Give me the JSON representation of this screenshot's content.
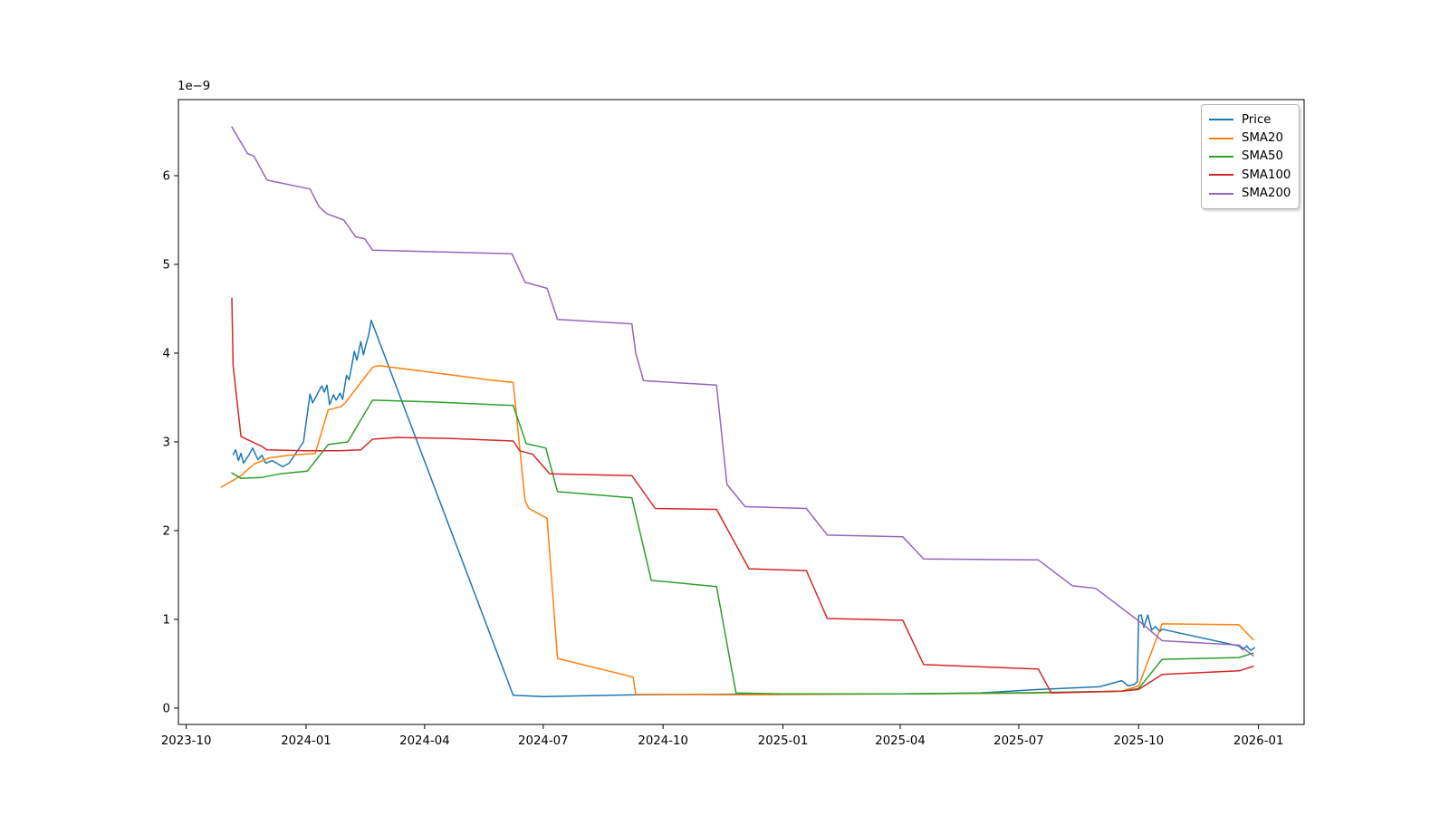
{
  "figure": {
    "background": "#ffffff",
    "y_axis_offset_label": "1e−9"
  },
  "chart_data": {
    "type": "line",
    "title": "",
    "xlabel": "",
    "ylabel": "",
    "grid": false,
    "y_unit_multiplier": "1e-9",
    "y_range": [
      -0.184,
      6.857
    ],
    "x_range": [
      "2023-09-25",
      "2026-02-05"
    ],
    "y_ticks": [
      0,
      1,
      2,
      3,
      4,
      5,
      6
    ],
    "x_ticks": [
      {
        "date": "2023-10-01",
        "label": "2023-10"
      },
      {
        "date": "2024-01-01",
        "label": "2024-01"
      },
      {
        "date": "2024-04-01",
        "label": "2024-04"
      },
      {
        "date": "2024-07-01",
        "label": "2024-07"
      },
      {
        "date": "2024-10-01",
        "label": "2024-10"
      },
      {
        "date": "2025-01-01",
        "label": "2025-01"
      },
      {
        "date": "2025-04-01",
        "label": "2025-04"
      },
      {
        "date": "2025-07-01",
        "label": "2025-07"
      },
      {
        "date": "2025-10-01",
        "label": "2025-10"
      },
      {
        "date": "2026-01-01",
        "label": "2026-01"
      }
    ],
    "legend": {
      "position": "upper right"
    },
    "series": [
      {
        "name": "Price",
        "color": "#1f77b4",
        "points": [
          [
            "2023-11-06",
            2.86
          ],
          [
            "2023-11-08",
            2.91
          ],
          [
            "2023-11-10",
            2.79
          ],
          [
            "2023-11-12",
            2.87
          ],
          [
            "2023-11-14",
            2.76
          ],
          [
            "2023-11-18",
            2.85
          ],
          [
            "2023-11-21",
            2.93
          ],
          [
            "2023-11-25",
            2.8
          ],
          [
            "2023-11-28",
            2.85
          ],
          [
            "2023-12-01",
            2.76
          ],
          [
            "2023-12-06",
            2.79
          ],
          [
            "2023-12-14",
            2.72
          ],
          [
            "2023-12-19",
            2.76
          ],
          [
            "2023-12-30",
            3.0
          ],
          [
            "2024-01-04",
            3.54
          ],
          [
            "2024-01-06",
            3.44
          ],
          [
            "2024-01-09",
            3.52
          ],
          [
            "2024-01-11",
            3.58
          ],
          [
            "2024-01-13",
            3.63
          ],
          [
            "2024-01-15",
            3.56
          ],
          [
            "2024-01-17",
            3.64
          ],
          [
            "2024-01-19",
            3.42
          ],
          [
            "2024-01-22",
            3.53
          ],
          [
            "2024-01-24",
            3.47
          ],
          [
            "2024-01-27",
            3.55
          ],
          [
            "2024-01-29",
            3.48
          ],
          [
            "2024-02-01",
            3.75
          ],
          [
            "2024-02-03",
            3.7
          ],
          [
            "2024-02-05",
            3.85
          ],
          [
            "2024-02-07",
            4.02
          ],
          [
            "2024-02-09",
            3.92
          ],
          [
            "2024-02-12",
            4.13
          ],
          [
            "2024-02-14",
            3.98
          ],
          [
            "2024-02-16",
            4.1
          ],
          [
            "2024-02-18",
            4.2
          ],
          [
            "2024-02-20",
            4.37
          ],
          [
            "2024-06-08",
            0.145
          ],
          [
            "2024-07-01",
            0.13
          ],
          [
            "2024-09-10",
            0.15
          ],
          [
            "2025-01-01",
            0.16
          ],
          [
            "2025-04-01",
            0.16
          ],
          [
            "2025-06-01",
            0.17
          ],
          [
            "2025-07-16",
            0.21
          ],
          [
            "2025-09-01",
            0.24
          ],
          [
            "2025-09-18",
            0.31
          ],
          [
            "2025-09-23",
            0.25
          ],
          [
            "2025-09-28",
            0.27
          ],
          [
            "2025-09-30",
            0.3
          ],
          [
            "2025-10-01",
            1.04
          ],
          [
            "2025-10-03",
            1.05
          ],
          [
            "2025-10-05",
            0.91
          ],
          [
            "2025-10-08",
            1.05
          ],
          [
            "2025-10-11",
            0.88
          ],
          [
            "2025-10-14",
            0.92
          ],
          [
            "2025-10-17",
            0.86
          ],
          [
            "2025-10-19",
            0.89
          ],
          [
            "2025-12-17",
            0.7
          ],
          [
            "2025-12-20",
            0.66
          ],
          [
            "2025-12-23",
            0.7
          ],
          [
            "2025-12-26",
            0.65
          ],
          [
            "2025-12-29",
            0.68
          ]
        ]
      },
      {
        "name": "SMA20",
        "color": "#ff7f0e",
        "points": [
          [
            "2023-10-28",
            2.49
          ],
          [
            "2023-11-12",
            2.62
          ],
          [
            "2023-11-22",
            2.75
          ],
          [
            "2023-12-04",
            2.82
          ],
          [
            "2023-12-19",
            2.85
          ],
          [
            "2024-01-08",
            2.87
          ],
          [
            "2024-01-18",
            3.36
          ],
          [
            "2024-01-28",
            3.4
          ],
          [
            "2024-01-31",
            3.44
          ],
          [
            "2024-02-21",
            3.84
          ],
          [
            "2024-02-26",
            3.86
          ],
          [
            "2024-04-08",
            3.78
          ],
          [
            "2024-05-20",
            3.7
          ],
          [
            "2024-06-08",
            3.67
          ],
          [
            "2024-06-17",
            2.34
          ],
          [
            "2024-06-20",
            2.25
          ],
          [
            "2024-07-04",
            2.14
          ],
          [
            "2024-07-12",
            0.56
          ],
          [
            "2024-09-08",
            0.35
          ],
          [
            "2024-09-10",
            0.155
          ],
          [
            "2024-12-01",
            0.15
          ],
          [
            "2025-04-01",
            0.16
          ],
          [
            "2025-07-16",
            0.17
          ],
          [
            "2025-09-18",
            0.19
          ],
          [
            "2025-10-01",
            0.25
          ],
          [
            "2025-10-19",
            0.95
          ],
          [
            "2025-12-17",
            0.94
          ],
          [
            "2025-12-28",
            0.77
          ]
        ]
      },
      {
        "name": "SMA50",
        "color": "#2ca02c",
        "points": [
          [
            "2023-11-05",
            2.65
          ],
          [
            "2023-11-12",
            2.59
          ],
          [
            "2023-11-28",
            2.6
          ],
          [
            "2023-12-12",
            2.64
          ],
          [
            "2024-01-02",
            2.67
          ],
          [
            "2024-01-18",
            2.97
          ],
          [
            "2024-02-02",
            3.0
          ],
          [
            "2024-02-21",
            3.47
          ],
          [
            "2024-04-08",
            3.45
          ],
          [
            "2024-06-08",
            3.41
          ],
          [
            "2024-06-18",
            2.98
          ],
          [
            "2024-07-03",
            2.93
          ],
          [
            "2024-07-12",
            2.44
          ],
          [
            "2024-09-07",
            2.37
          ],
          [
            "2024-09-22",
            1.44
          ],
          [
            "2024-11-11",
            1.37
          ],
          [
            "2024-11-26",
            0.17
          ],
          [
            "2025-01-01",
            0.16
          ],
          [
            "2025-04-01",
            0.16
          ],
          [
            "2025-07-16",
            0.175
          ],
          [
            "2025-09-18",
            0.19
          ],
          [
            "2025-10-01",
            0.22
          ],
          [
            "2025-10-19",
            0.55
          ],
          [
            "2025-12-17",
            0.57
          ],
          [
            "2025-12-28",
            0.62
          ]
        ]
      },
      {
        "name": "SMA100",
        "color": "#d62728",
        "points": [
          [
            "2023-11-05",
            4.62
          ],
          [
            "2023-11-06",
            3.86
          ],
          [
            "2023-11-12",
            3.06
          ],
          [
            "2023-11-28",
            2.95
          ],
          [
            "2023-12-02",
            2.91
          ],
          [
            "2023-12-30",
            2.9
          ],
          [
            "2024-01-26",
            2.9
          ],
          [
            "2024-02-12",
            2.91
          ],
          [
            "2024-02-21",
            3.03
          ],
          [
            "2024-03-11",
            3.05
          ],
          [
            "2024-04-20",
            3.04
          ],
          [
            "2024-06-08",
            3.01
          ],
          [
            "2024-06-13",
            2.9
          ],
          [
            "2024-06-23",
            2.86
          ],
          [
            "2024-07-06",
            2.64
          ],
          [
            "2024-09-07",
            2.62
          ],
          [
            "2024-09-25",
            2.25
          ],
          [
            "2024-11-11",
            2.24
          ],
          [
            "2024-12-06",
            1.57
          ],
          [
            "2025-01-19",
            1.55
          ],
          [
            "2025-02-04",
            1.01
          ],
          [
            "2025-04-03",
            0.99
          ],
          [
            "2025-04-19",
            0.49
          ],
          [
            "2025-07-16",
            0.44
          ],
          [
            "2025-07-26",
            0.17
          ],
          [
            "2025-09-18",
            0.19
          ],
          [
            "2025-10-01",
            0.21
          ],
          [
            "2025-10-19",
            0.38
          ],
          [
            "2025-12-17",
            0.42
          ],
          [
            "2025-12-28",
            0.47
          ]
        ]
      },
      {
        "name": "SMA200",
        "color": "#9467bd",
        "points": [
          [
            "2023-11-05",
            6.55
          ],
          [
            "2023-11-17",
            6.25
          ],
          [
            "2023-11-22",
            6.22
          ],
          [
            "2023-12-02",
            5.95
          ],
          [
            "2024-01-04",
            5.85
          ],
          [
            "2024-01-11",
            5.65
          ],
          [
            "2024-01-17",
            5.57
          ],
          [
            "2024-01-30",
            5.5
          ],
          [
            "2024-02-08",
            5.31
          ],
          [
            "2024-02-15",
            5.29
          ],
          [
            "2024-02-21",
            5.16
          ],
          [
            "2024-06-07",
            5.12
          ],
          [
            "2024-06-17",
            4.8
          ],
          [
            "2024-07-04",
            4.73
          ],
          [
            "2024-07-12",
            4.38
          ],
          [
            "2024-09-07",
            4.33
          ],
          [
            "2024-09-10",
            4.0
          ],
          [
            "2024-09-16",
            3.69
          ],
          [
            "2024-11-11",
            3.64
          ],
          [
            "2024-11-19",
            2.52
          ],
          [
            "2024-12-03",
            2.27
          ],
          [
            "2025-01-19",
            2.25
          ],
          [
            "2025-02-04",
            1.95
          ],
          [
            "2025-04-03",
            1.93
          ],
          [
            "2025-04-19",
            1.68
          ],
          [
            "2025-07-16",
            1.67
          ],
          [
            "2025-08-11",
            1.38
          ],
          [
            "2025-08-29",
            1.35
          ],
          [
            "2025-10-03",
            0.96
          ],
          [
            "2025-10-19",
            0.76
          ],
          [
            "2025-12-17",
            0.71
          ],
          [
            "2025-12-28",
            0.59
          ]
        ]
      }
    ]
  }
}
